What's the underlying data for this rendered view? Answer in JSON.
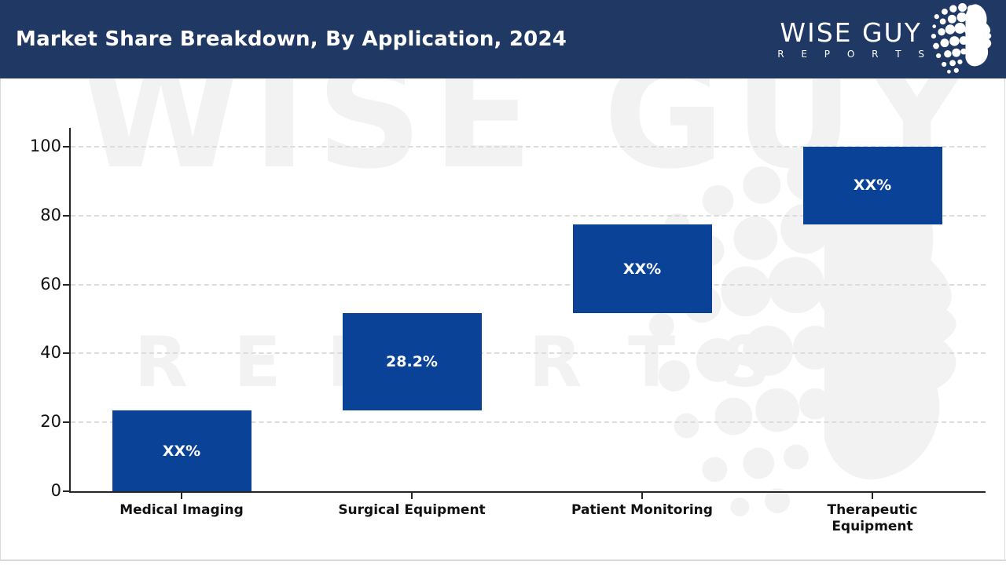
{
  "header": {
    "title": "Market Share Breakdown, By Application, 2024",
    "logo": {
      "line1": "WISE GUY",
      "line2": "R E P O R T S"
    }
  },
  "watermark": {
    "line1": "WISE GUY",
    "line2": "R E P O R T S"
  },
  "colors": {
    "header_bg": "#1f3864",
    "bar": "#0a4298",
    "grid": "#dcdcdc",
    "axis": "#262626",
    "bar_label": "#ffffff",
    "tick_text": "#111111",
    "watermark": "#f2f2f2"
  },
  "chart_data": {
    "type": "bar",
    "variant": "waterfall",
    "title": "Market Share Breakdown, By Application, 2024",
    "xlabel": "",
    "ylabel": "",
    "categories": [
      "Medical Imaging",
      "Surgical Equipment",
      "Patient Monitoring",
      "Therapeutic Equipment"
    ],
    "segments": [
      {
        "category": "Medical Imaging",
        "start": 0,
        "end": 23.4,
        "value_label": "XX%"
      },
      {
        "category": "Surgical Equipment",
        "start": 23.4,
        "end": 51.6,
        "value": 28.2,
        "value_label": "28.2%"
      },
      {
        "category": "Patient Monitoring",
        "start": 51.6,
        "end": 77.5,
        "value_label": "XX%"
      },
      {
        "category": "Therapeutic Equipment",
        "start": 77.5,
        "end": 100,
        "value_label": "XX%"
      }
    ],
    "yticks": [
      0,
      20,
      40,
      60,
      80,
      100
    ],
    "ylim": [
      0,
      105
    ],
    "grid": "horizontal-dashed",
    "legend": "none",
    "bar_color": "#0a4298"
  }
}
